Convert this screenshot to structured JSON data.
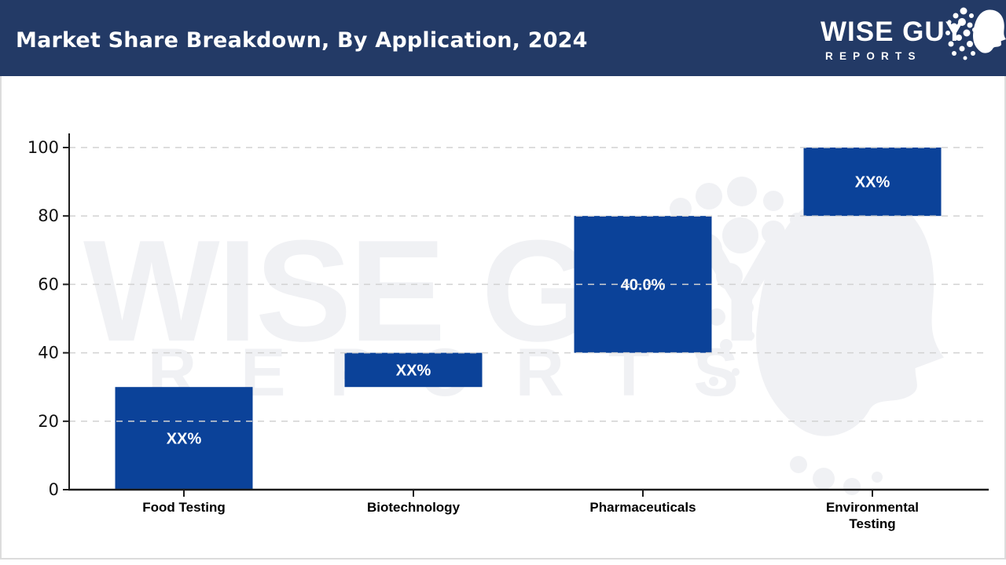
{
  "header": {
    "title": "Market Share Breakdown, By Application, 2024",
    "bg_color": "#233A66",
    "logo": {
      "wordmark": "WISE GUY",
      "subtext": "REPORTS"
    }
  },
  "watermark": {
    "wordmark": "WISE GUY",
    "subtext": "REPORTS"
  },
  "chart_data": {
    "type": "bar",
    "subtype": "waterfall",
    "title": "Market Share Breakdown, By Application, 2024",
    "categories": [
      "Food Testing",
      "Biotechnology",
      "Pharmaceuticals",
      "Environmental Testing"
    ],
    "category_label_lines": [
      [
        "Food Testing"
      ],
      [
        "Biotechnology"
      ],
      [
        "Pharmaceuticals"
      ],
      [
        "Environmental",
        "Testing"
      ]
    ],
    "series": [
      {
        "name": "Market Share (%)",
        "segments": [
          {
            "category": "Food Testing",
            "start": 0,
            "end": 30,
            "label": "XX%"
          },
          {
            "category": "Biotechnology",
            "start": 30,
            "end": 40,
            "label": "XX%"
          },
          {
            "category": "Pharmaceuticals",
            "start": 40,
            "end": 80,
            "label": "40.0%"
          },
          {
            "category": "Environmental Testing",
            "start": 80,
            "end": 100,
            "label": "XX%"
          }
        ]
      }
    ],
    "xlabel": "",
    "ylabel": "",
    "ylim": [
      0,
      100
    ],
    "yticks": [
      0,
      20,
      40,
      60,
      80,
      100
    ],
    "grid": {
      "horizontal": true,
      "style": "dashed",
      "above_bars": true
    },
    "legend": "none",
    "bar_color": "#0B4299",
    "bar_label_color": "#FFFFFF",
    "axis_color": "#1C1C1C",
    "grid_color": "#D2D2D2",
    "tick_label_color": "#111111"
  },
  "colors": {
    "header_bg": "#233A66",
    "content_bg": "#FFFFFF",
    "frame_border": "#DCDCDC",
    "watermark": "#F0F1F4"
  }
}
